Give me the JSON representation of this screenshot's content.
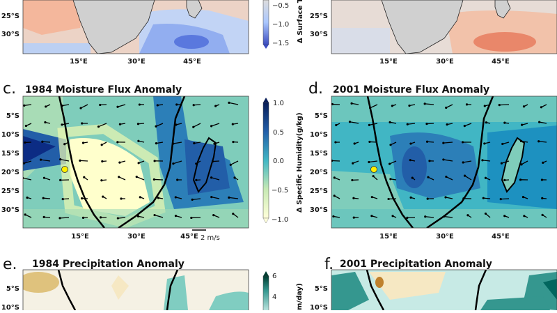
{
  "figure": {
    "panel_a": {
      "lat_labels": [
        "25°S",
        "30°S"
      ],
      "lon_labels": [
        "15°E",
        "30°E",
        "45°E"
      ],
      "colorbar": {
        "label": "Δ Surface T",
        "ticks": [
          "−0.5",
          "−1.0",
          "−1.5"
        ],
        "colormap": "coolwarm"
      }
    },
    "panel_b": {
      "lat_labels": [
        "25°S",
        "30°S"
      ],
      "lon_labels": [
        "15°E",
        "30°E",
        "45°E"
      ]
    },
    "panel_c": {
      "letter": "c.",
      "title": "1984 Moisture Flux Anomaly",
      "lat_labels": [
        "5°S",
        "10°S",
        "15°S",
        "20°S",
        "25°S",
        "30°S"
      ],
      "lon_labels": [
        "15°E",
        "30°E",
        "45°E"
      ],
      "quiver_key": "2 m/s",
      "colorbar": {
        "label": "Δ Specific Humidity(g/kg)",
        "ticks": [
          "1.0",
          "0.5",
          "0.0",
          "−0.5",
          "−1.0"
        ],
        "colormap": "YlGnBu"
      }
    },
    "panel_d": {
      "letter": "d.",
      "title": "2001 Moisture Flux Anomaly",
      "lat_labels": [
        "5°S",
        "10°S",
        "15°S",
        "20°S",
        "25°S",
        "30°S"
      ],
      "lon_labels": [
        "15°E",
        "30°E",
        "45°E"
      ]
    },
    "panel_e": {
      "letter": "e.",
      "title": "1984 Precipitation Anomaly",
      "lat_labels": [
        "5°S",
        "10°S"
      ],
      "colorbar": {
        "label": "m/day)",
        "ticks": [
          "6",
          "4"
        ],
        "colormap": "BrBG"
      }
    },
    "panel_f": {
      "letter": "f.",
      "title": "2001 Precipitation Anomaly",
      "lat_labels": [
        "5°S",
        "10°S"
      ]
    },
    "colors": {
      "land": "#d0d0d0",
      "marker": "#ffee00"
    }
  }
}
